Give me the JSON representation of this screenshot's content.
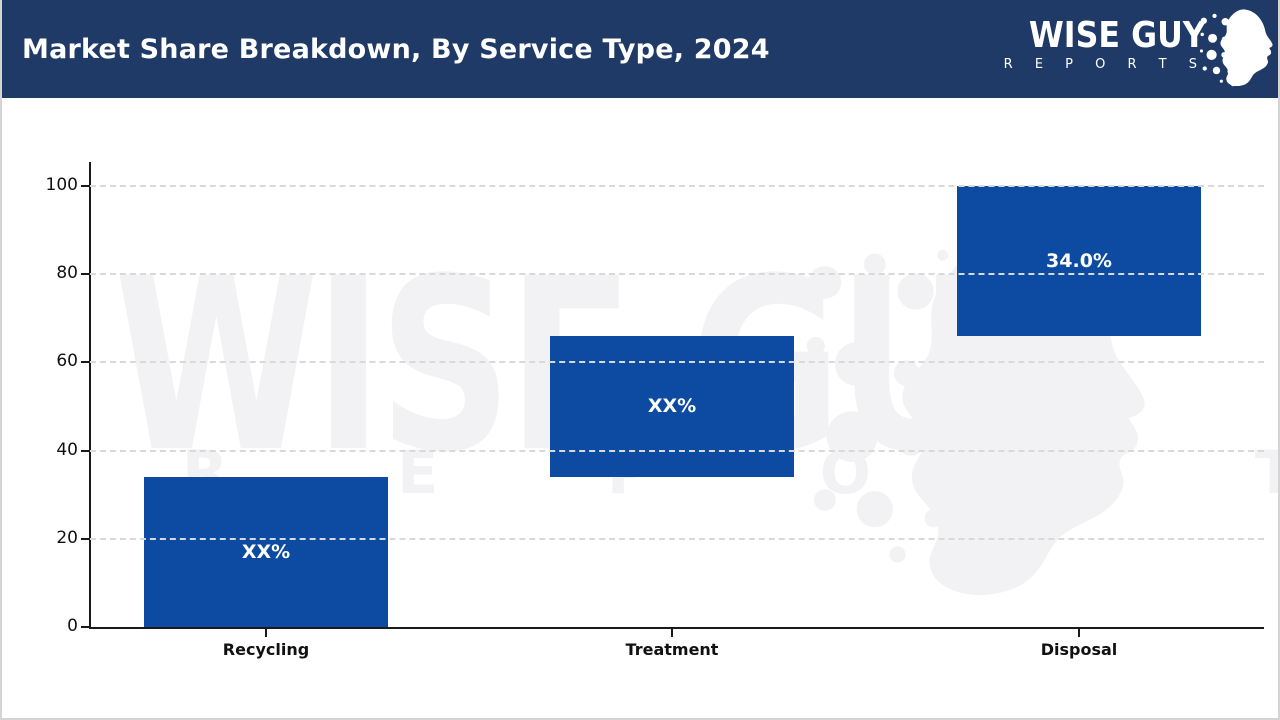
{
  "header": {
    "title": "Market Share Breakdown, By Service Type, 2024",
    "bg_color": "#1f3a66",
    "logo": {
      "line1": "WISE GUY",
      "line2": "R E P O R T S"
    }
  },
  "watermark": {
    "line1": "WISE GUY",
    "line2": "R E P O R T S",
    "color": "#f2f2f4"
  },
  "chart_data": {
    "type": "bar",
    "variant": "floating-segment-waterfall",
    "title": "Market Share Breakdown, By Service Type, 2024",
    "categories": [
      "Recycling",
      "Treatment",
      "Disposal"
    ],
    "segments": [
      {
        "category": "Recycling",
        "start": 0,
        "end": 34,
        "value": 34,
        "label": "XX%"
      },
      {
        "category": "Treatment",
        "start": 34,
        "end": 66,
        "value": 32,
        "label": "XX%"
      },
      {
        "category": "Disposal",
        "start": 66,
        "end": 100,
        "value": 34,
        "label": "34.0%"
      }
    ],
    "xlabel": "",
    "ylabel": "",
    "ylim": [
      0,
      100
    ],
    "yticks": [
      0,
      20,
      40,
      60,
      80,
      100
    ],
    "grid": "horizontal-dashed",
    "legend": "none",
    "bar_color": "#0d4aa2",
    "bar_label_color": "#ffffff",
    "axis_color": "#1a1a1a",
    "gridline_color": "#d9d9d9"
  }
}
